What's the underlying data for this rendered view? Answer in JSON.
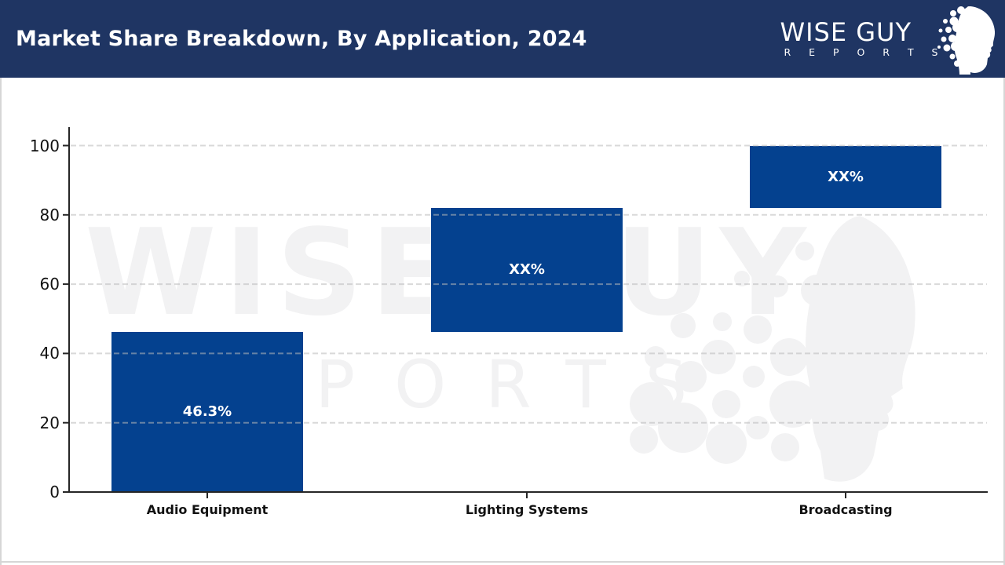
{
  "header": {
    "title": "Market Share Breakdown, By Application, 2024",
    "bg_color": "#1f3563",
    "logo": {
      "name_top": "WISE GUY",
      "name_bottom": "R E P O R T S"
    }
  },
  "watermark": {
    "line1": "WISE GUY",
    "line2": "REPORTS"
  },
  "chart_data": {
    "type": "bar",
    "subtype": "waterfall",
    "title": "Market Share Breakdown, By Application, 2024",
    "categories": [
      "Audio Equipment",
      "Lighting Systems",
      "Broadcasting"
    ],
    "segments": [
      {
        "category": "Audio Equipment",
        "start": 0,
        "end": 46.3,
        "value": 46.3,
        "display_label": "46.3%"
      },
      {
        "category": "Lighting Systems",
        "start": 46.3,
        "end": 82.1,
        "value": 35.8,
        "display_label": "XX%"
      },
      {
        "category": "Broadcasting",
        "start": 82.1,
        "end": 100,
        "value": 17.9,
        "display_label": "XX%"
      }
    ],
    "ylim": [
      0,
      100
    ],
    "yticks": [
      0,
      20,
      40,
      60,
      80,
      100
    ],
    "ytick_labels": [
      "0",
      "20",
      "40",
      "60",
      "80",
      "100"
    ],
    "grid": "dashed-horizontal",
    "legend": "none",
    "bar_color": "#04418f",
    "bar_label_color": "#ffffff",
    "axis_color": "#262626",
    "gridline_color": "rgba(185,185,185,0.55)"
  },
  "colors": {
    "header_bg": "#1f3563",
    "page_bg": "#ffffff",
    "watermark": "#f2f2f3",
    "frame_border": "#d6d6d6"
  }
}
